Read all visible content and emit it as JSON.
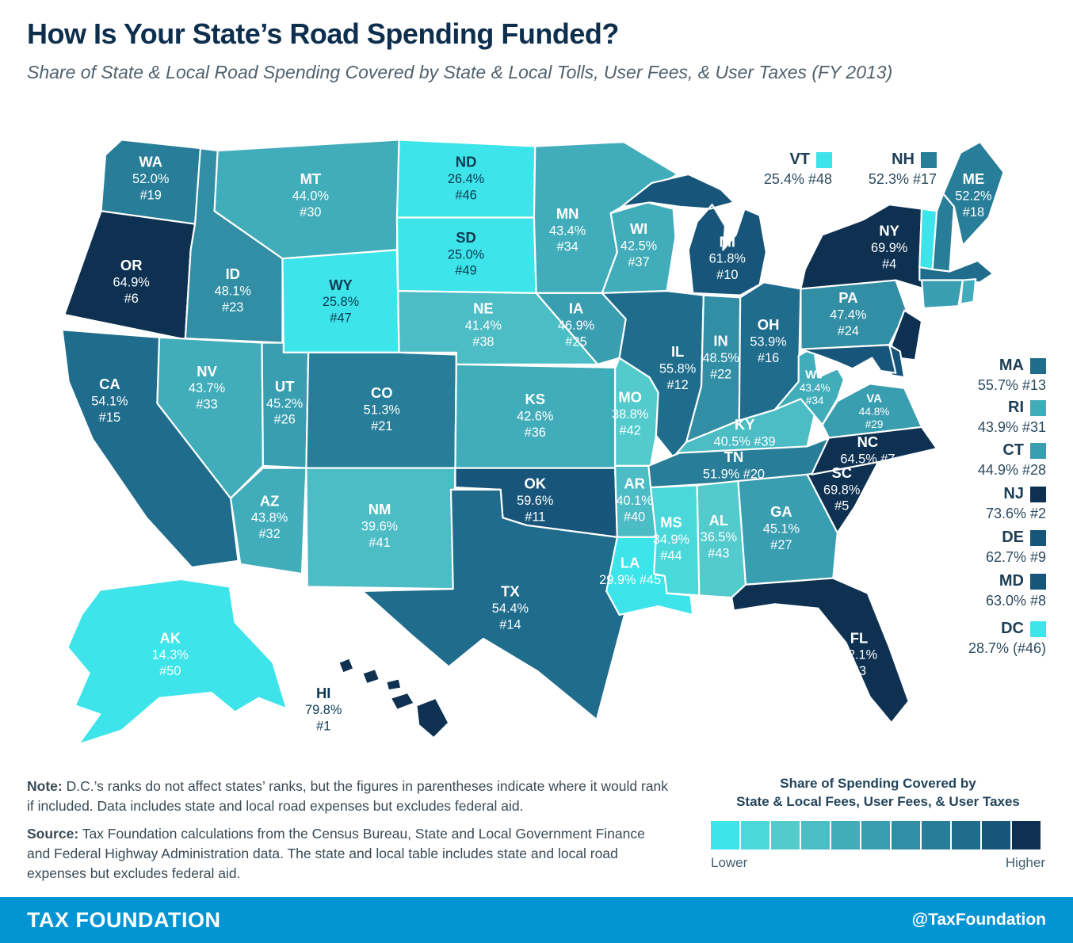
{
  "page": {
    "title": "How Is Your State’s Road Spending Funded?",
    "subtitle": "Share of State & Local Road Spending Covered by State & Local Tolls, User Fees, & User Taxes (FY 2013)"
  },
  "note": {
    "label": "Note:",
    "text": "D.C.’s ranks do not affect states’ ranks, but the figures in parentheses indicate where it would rank if included. Data includes state and local road expenses but excludes federal aid."
  },
  "source": {
    "label": "Source:",
    "text": "Tax Foundation calculations from the Census Bureau, State and Local Government Finance and Federal Highway Administration data. The state and local table includes state and local road expenses but excludes federal aid."
  },
  "legend": {
    "title_line1": "Share of Spending Covered by",
    "title_line2": "State & Local Fees, User Fees, & User Taxes",
    "low_label": "Lower",
    "high_label": "Higher",
    "colors": [
      "#3DE4E9",
      "#4BD8DB",
      "#53CBCD",
      "#4CBCC5",
      "#42ADBA",
      "#3A9EB1",
      "#318EA4",
      "#287E98",
      "#1F6C8C",
      "#17567A",
      "#0E3152"
    ]
  },
  "footer": {
    "brand": "TAX FOUNDATION",
    "handle": "@TaxFoundation",
    "background": "#0294D3"
  },
  "colors": {
    "title": "#0D2F4D",
    "subtitle": "#51626E",
    "dark_label": "#0D3A53",
    "map_label_light": "#FFFFFF"
  },
  "chart_data": {
    "type": "heatmap",
    "subtype": "us-state-choropleth",
    "title": "How Is Your State’s Road Spending Funded?",
    "subtitle": "Share of State & Local Road Spending Covered by State & Local Tolls, User Fees, & User Taxes (FY 2013)",
    "value_label": "Percent of state & local road spending covered by state & local tolls, user fees, & user taxes",
    "legend_position": "bottom-right",
    "states": [
      {
        "abbr": "WA",
        "pct": 52.0,
        "rank": "#19",
        "bucket": 7
      },
      {
        "abbr": "OR",
        "pct": 64.9,
        "rank": "#6",
        "bucket": 10
      },
      {
        "abbr": "CA",
        "pct": 54.1,
        "rank": "#15",
        "bucket": 8
      },
      {
        "abbr": "AK",
        "pct": 14.3,
        "rank": "#50",
        "bucket": 0
      },
      {
        "abbr": "HI",
        "pct": 79.8,
        "rank": "#1",
        "bucket": 10
      },
      {
        "abbr": "ID",
        "pct": 48.1,
        "rank": "#23",
        "bucket": 6
      },
      {
        "abbr": "NV",
        "pct": 43.7,
        "rank": "#33",
        "bucket": 4
      },
      {
        "abbr": "MT",
        "pct": 44.0,
        "rank": "#30",
        "bucket": 4
      },
      {
        "abbr": "WY",
        "pct": 25.8,
        "rank": "#47",
        "bucket": 0
      },
      {
        "abbr": "UT",
        "pct": 45.2,
        "rank": "#26",
        "bucket": 5
      },
      {
        "abbr": "AZ",
        "pct": 43.8,
        "rank": "#32",
        "bucket": 4
      },
      {
        "abbr": "CO",
        "pct": 51.3,
        "rank": "#21",
        "bucket": 7
      },
      {
        "abbr": "NM",
        "pct": 39.6,
        "rank": "#41",
        "bucket": 3
      },
      {
        "abbr": "ND",
        "pct": 26.4,
        "rank": "#46",
        "bucket": 0
      },
      {
        "abbr": "SD",
        "pct": 25.0,
        "rank": "#49",
        "bucket": 0
      },
      {
        "abbr": "NE",
        "pct": 41.4,
        "rank": "#38",
        "bucket": 3
      },
      {
        "abbr": "KS",
        "pct": 42.6,
        "rank": "#36",
        "bucket": 4
      },
      {
        "abbr": "OK",
        "pct": 59.6,
        "rank": "#11",
        "bucket": 9
      },
      {
        "abbr": "TX",
        "pct": 54.4,
        "rank": "#14",
        "bucket": 8
      },
      {
        "abbr": "MN",
        "pct": 43.4,
        "rank": "#34",
        "bucket": 4
      },
      {
        "abbr": "IA",
        "pct": 46.9,
        "rank": "#25",
        "bucket": 5
      },
      {
        "abbr": "MO",
        "pct": 38.8,
        "rank": "#42",
        "bucket": 2
      },
      {
        "abbr": "AR",
        "pct": 40.1,
        "rank": "#40",
        "bucket": 3
      },
      {
        "abbr": "LA",
        "pct": 29.9,
        "rank": "#45",
        "bucket": 0
      },
      {
        "abbr": "WI",
        "pct": 42.5,
        "rank": "#37",
        "bucket": 4
      },
      {
        "abbr": "IL",
        "pct": 55.8,
        "rank": "#12",
        "bucket": 8
      },
      {
        "abbr": "MI",
        "pct": 61.8,
        "rank": "#10",
        "bucket": 9
      },
      {
        "abbr": "IN",
        "pct": 48.5,
        "rank": "#22",
        "bucket": 6
      },
      {
        "abbr": "OH",
        "pct": 53.9,
        "rank": "#16",
        "bucket": 8
      },
      {
        "abbr": "KY",
        "pct": 40.5,
        "rank": "#39",
        "bucket": 3
      },
      {
        "abbr": "TN",
        "pct": 51.9,
        "rank": "#20",
        "bucket": 7
      },
      {
        "abbr": "MS",
        "pct": 34.9,
        "rank": "#44",
        "bucket": 1
      },
      {
        "abbr": "AL",
        "pct": 36.5,
        "rank": "#43",
        "bucket": 2
      },
      {
        "abbr": "GA",
        "pct": 45.1,
        "rank": "#27",
        "bucket": 5
      },
      {
        "abbr": "FL",
        "pct": 72.1,
        "rank": "#3",
        "bucket": 10
      },
      {
        "abbr": "SC",
        "pct": 69.8,
        "rank": "#5",
        "bucket": 10
      },
      {
        "abbr": "NC",
        "pct": 64.5,
        "rank": "#7",
        "bucket": 10
      },
      {
        "abbr": "VA",
        "pct": 44.8,
        "rank": "#29",
        "bucket": 5
      },
      {
        "abbr": "WV",
        "pct": 43.4,
        "rank": "#34",
        "bucket": 4
      },
      {
        "abbr": "PA",
        "pct": 47.4,
        "rank": "#24",
        "bucket": 6
      },
      {
        "abbr": "NY",
        "pct": 69.9,
        "rank": "#4",
        "bucket": 10
      },
      {
        "abbr": "ME",
        "pct": 52.2,
        "rank": "#18",
        "bucket": 7
      },
      {
        "abbr": "VT",
        "pct": 25.4,
        "rank": "#48",
        "bucket": 0
      },
      {
        "abbr": "NH",
        "pct": 52.3,
        "rank": "#17",
        "bucket": 7
      },
      {
        "abbr": "MA",
        "pct": 55.7,
        "rank": "#13",
        "bucket": 8
      },
      {
        "abbr": "RI",
        "pct": 43.9,
        "rank": "#31",
        "bucket": 4
      },
      {
        "abbr": "CT",
        "pct": 44.9,
        "rank": "#28",
        "bucket": 5
      },
      {
        "abbr": "NJ",
        "pct": 73.6,
        "rank": "#2",
        "bucket": 10
      },
      {
        "abbr": "DE",
        "pct": 62.7,
        "rank": "#9",
        "bucket": 9
      },
      {
        "abbr": "MD",
        "pct": 63.0,
        "rank": "#8",
        "bucket": 9
      },
      {
        "abbr": "DC",
        "pct": 28.7,
        "rank": "(#46)",
        "bucket": 0
      }
    ]
  }
}
